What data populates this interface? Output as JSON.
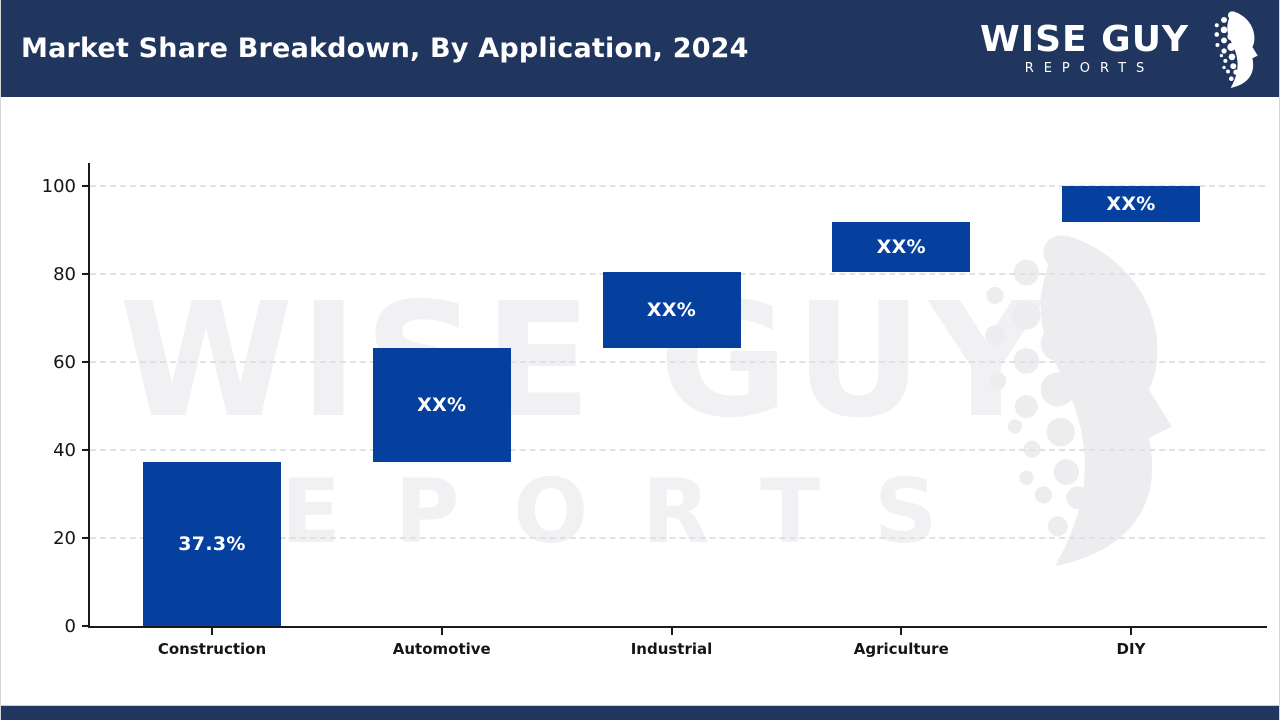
{
  "header": {
    "title": "Market Share Breakdown, By Application, 2024",
    "logo": {
      "primary": "WISE GUY",
      "secondary": "REPORTS"
    }
  },
  "watermark": {
    "primary": "WISE GUY",
    "secondary": "REPORTS"
  },
  "chart_data": {
    "type": "bar",
    "subtype": "waterfall",
    "title": "Market Share Breakdown, By Application, 2024",
    "categories": [
      "Construction",
      "Automotive",
      "Industrial",
      "Agriculture",
      "DIY"
    ],
    "values": [
      37.3,
      25.9,
      17.3,
      11.4,
      8.1
    ],
    "cumulative_ranges": [
      [
        0,
        37.3
      ],
      [
        37.3,
        63.2
      ],
      [
        63.2,
        80.5
      ],
      [
        80.5,
        91.9
      ],
      [
        91.9,
        100
      ]
    ],
    "bar_labels": [
      "37.3%",
      "XX%",
      "XX%",
      "XX%",
      "XX%"
    ],
    "xlabel": "",
    "ylabel": "",
    "y_ticks": [
      0,
      20,
      40,
      60,
      80,
      100
    ],
    "ylim": [
      0,
      105
    ],
    "grid": "horizontal-dashed",
    "legend": "none",
    "bar_color": "#05409e"
  },
  "colors": {
    "header_bg": "#21365f",
    "footer_bg": "#21365f",
    "bar": "#05409e",
    "grid": "#e1e1e5",
    "axis": "#1a1a1a",
    "watermark": "#f1f1f4"
  }
}
